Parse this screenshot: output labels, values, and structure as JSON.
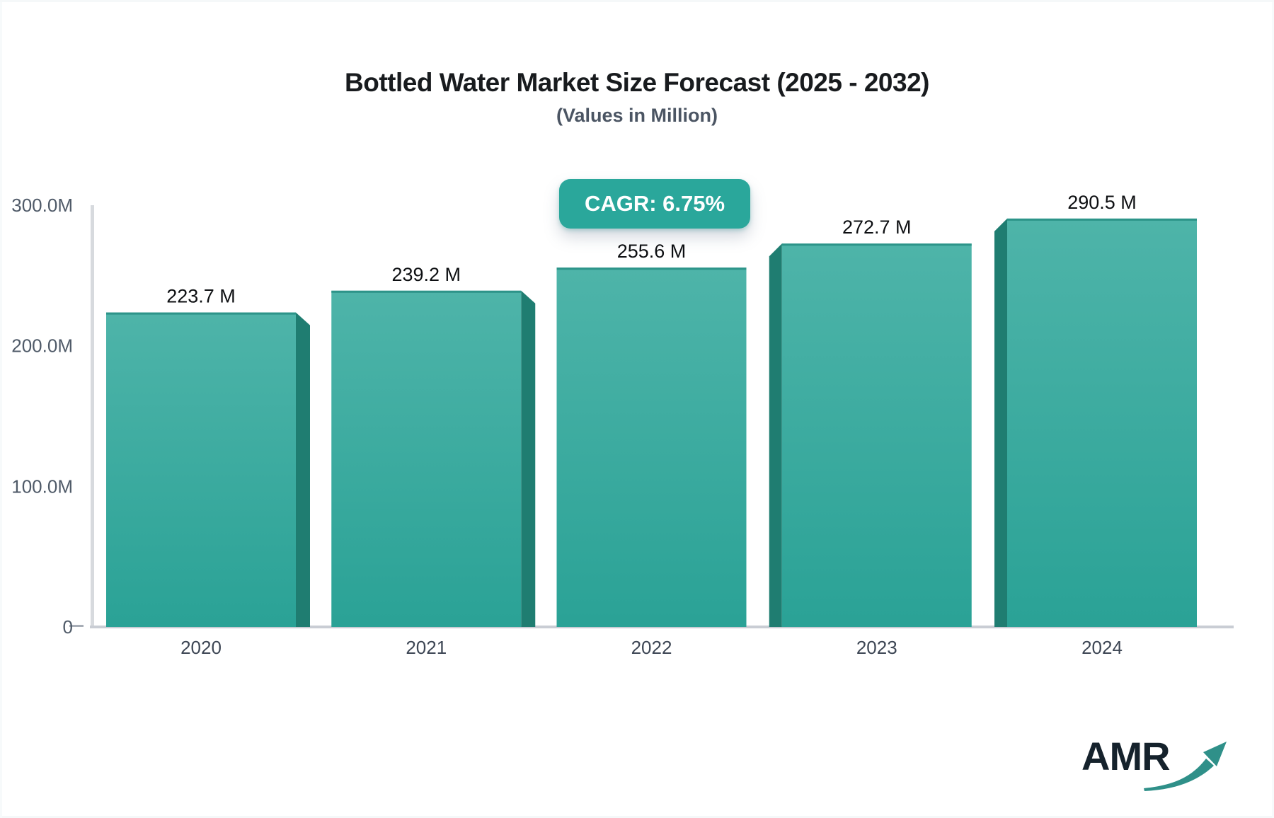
{
  "header": {
    "title": "Bottled Water Market Size Forecast (2025 - 2032)",
    "subtitle": "(Values in Million)"
  },
  "badge": {
    "label": "CAGR: 6.75%",
    "bg": "#2aa79b",
    "text_color": "#ffffff"
  },
  "chart_data": {
    "type": "bar",
    "title": "Bottled Water Market Size Forecast (2025 - 2032)",
    "subtitle": "(Values in Million)",
    "categories": [
      "2020",
      "2021",
      "2022",
      "2023",
      "2024"
    ],
    "values": [
      223.7,
      239.2,
      255.6,
      272.7,
      290.5
    ],
    "value_labels": [
      "223.7 M",
      "239.2 M",
      "255.6 M",
      "272.7 M",
      "290.5 M"
    ],
    "xlabel": "",
    "ylabel": "",
    "ylim": [
      0,
      300
    ],
    "yticks": [
      {
        "label": "300.0M",
        "value": 300
      },
      {
        "label": "200.0M",
        "value": 200
      },
      {
        "label": "100.0M",
        "value": 100
      },
      {
        "label": "0",
        "value": 0
      }
    ],
    "grid": false,
    "legend": false,
    "annotation": "CAGR: 6.75%",
    "bar_3d_side": [
      "right",
      "right",
      "none",
      "left",
      "left"
    ]
  },
  "style": {
    "bar_gradient_top": "#4eb4a9",
    "bar_gradient_bottom": "#2aa296",
    "bar_side_color": "#1f7d71",
    "bar_top_edge_color": "#2d9489",
    "axis_line_color": "#d7dade",
    "baseline_color": "#c9cdd4",
    "tick_color": "#a7adb6",
    "ytick_text_color": "#4f5a68",
    "xtick_text_color": "#3d4654",
    "value_text_color": "#0d0f12"
  },
  "logo": {
    "text": "AMR",
    "arrow_color": "#2f9089",
    "text_color": "#15222c"
  }
}
